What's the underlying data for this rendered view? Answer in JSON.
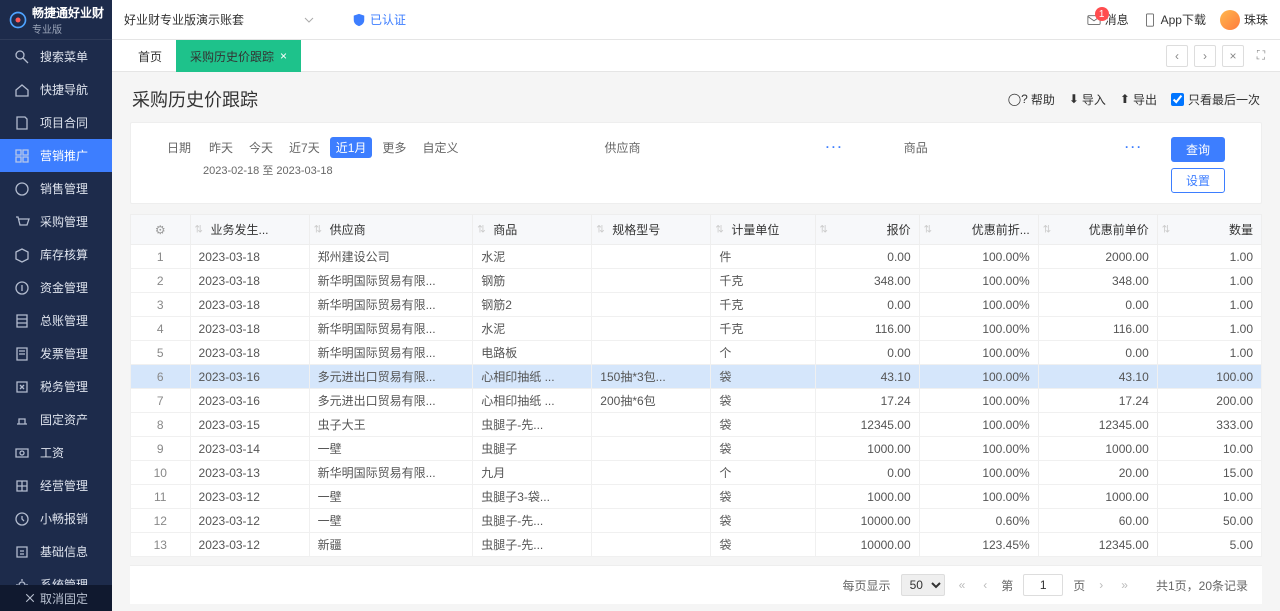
{
  "logo": {
    "brand": "畅捷通好业财",
    "edition": "专业版"
  },
  "sidebar": {
    "items": [
      {
        "label": "搜索菜单",
        "icon": "search"
      },
      {
        "label": "快捷导航",
        "icon": "home"
      },
      {
        "label": "项目合同",
        "icon": "doc"
      },
      {
        "label": "营销推广",
        "icon": "grid",
        "active": true
      },
      {
        "label": "销售管理",
        "icon": "circle"
      },
      {
        "label": "采购管理",
        "icon": "cart"
      },
      {
        "label": "库存核算",
        "icon": "box"
      },
      {
        "label": "资金管理",
        "icon": "money"
      },
      {
        "label": "总账管理",
        "icon": "ledger"
      },
      {
        "label": "发票管理",
        "icon": "invoice"
      },
      {
        "label": "税务管理",
        "icon": "tax"
      },
      {
        "label": "固定资产",
        "icon": "asset"
      },
      {
        "label": "工资",
        "icon": "salary"
      },
      {
        "label": "经营管理",
        "icon": "manage"
      },
      {
        "label": "小畅报销",
        "icon": "reimburse"
      },
      {
        "label": "基础信息",
        "icon": "info"
      },
      {
        "label": "系统管理",
        "icon": "system"
      }
    ],
    "footer": "取消固定"
  },
  "topbar": {
    "org": "好业财专业版演示账套",
    "verified": "已认证",
    "msg": {
      "label": "消息",
      "count": "1"
    },
    "download": "App下载",
    "user": "珠珠"
  },
  "tabs": {
    "home": "首页",
    "active": "采购历史价跟踪"
  },
  "page": {
    "title": "采购历史价跟踪",
    "actions": {
      "help": "帮助",
      "import": "导入",
      "export": "导出",
      "lastonly": "只看最后一次"
    }
  },
  "filter": {
    "date_label": "日期",
    "quick": [
      "昨天",
      "今天",
      "近7天",
      "近1月",
      "更多",
      "自定义"
    ],
    "quick_active": 3,
    "range": "2023-02-18 至 2023-03-18",
    "supplier_label": "供应商",
    "product_label": "商品",
    "query": "查询",
    "setting": "设置"
  },
  "table": {
    "columns": [
      "",
      "业务发生...",
      "供应商",
      "商品",
      "规格型号",
      "计量单位",
      "报价",
      "优惠前折...",
      "优惠前单价",
      "数量"
    ],
    "widths": [
      40,
      80,
      110,
      80,
      80,
      70,
      70,
      80,
      80,
      70
    ],
    "align": [
      "c",
      "l",
      "l",
      "l",
      "l",
      "l",
      "r",
      "r",
      "r",
      "r"
    ],
    "highlight_row": 5,
    "rows": [
      [
        "1",
        "2023-03-18",
        "郑州建设公司",
        "水泥",
        "",
        "件",
        "0.00",
        "100.00%",
        "2000.00",
        "1.00"
      ],
      [
        "2",
        "2023-03-18",
        "新华明国际贸易有限...",
        "钢筋",
        "",
        "千克",
        "348.00",
        "100.00%",
        "348.00",
        "1.00"
      ],
      [
        "3",
        "2023-03-18",
        "新华明国际贸易有限...",
        "钢筋2",
        "",
        "千克",
        "0.00",
        "100.00%",
        "0.00",
        "1.00"
      ],
      [
        "4",
        "2023-03-18",
        "新华明国际贸易有限...",
        "水泥",
        "",
        "千克",
        "116.00",
        "100.00%",
        "116.00",
        "1.00"
      ],
      [
        "5",
        "2023-03-18",
        "新华明国际贸易有限...",
        "电路板",
        "",
        "个",
        "0.00",
        "100.00%",
        "0.00",
        "1.00"
      ],
      [
        "6",
        "2023-03-16",
        "多元进出口贸易有限...",
        "心相印抽纸 ...",
        "150抽*3包...",
        "袋",
        "43.10",
        "100.00%",
        "43.10",
        "100.00"
      ],
      [
        "7",
        "2023-03-16",
        "多元进出口贸易有限...",
        "心相印抽纸 ...",
        "200抽*6包",
        "袋",
        "17.24",
        "100.00%",
        "17.24",
        "200.00"
      ],
      [
        "8",
        "2023-03-15",
        "虫子大王",
        "虫腿子-先...",
        "",
        "袋",
        "12345.00",
        "100.00%",
        "12345.00",
        "333.00"
      ],
      [
        "9",
        "2023-03-14",
        "一壁",
        "虫腿子",
        "",
        "袋",
        "1000.00",
        "100.00%",
        "1000.00",
        "10.00"
      ],
      [
        "10",
        "2023-03-13",
        "新华明国际贸易有限...",
        "九月",
        "",
        "个",
        "0.00",
        "100.00%",
        "20.00",
        "15.00"
      ],
      [
        "11",
        "2023-03-12",
        "一壁",
        "虫腿子3-袋...",
        "",
        "袋",
        "1000.00",
        "100.00%",
        "1000.00",
        "10.00"
      ],
      [
        "12",
        "2023-03-12",
        "一壁",
        "虫腿子-先...",
        "",
        "袋",
        "10000.00",
        "0.60%",
        "60.00",
        "50.00"
      ],
      [
        "13",
        "2023-03-12",
        "新疆",
        "虫腿子-先...",
        "",
        "袋",
        "10000.00",
        "123.45%",
        "12345.00",
        "5.00"
      ]
    ]
  },
  "pager": {
    "perpage_label": "每页显示",
    "perpage": "50",
    "page_label_pre": "第",
    "page": "1",
    "page_label_post": "页",
    "summary": "共1页，20条记录"
  }
}
